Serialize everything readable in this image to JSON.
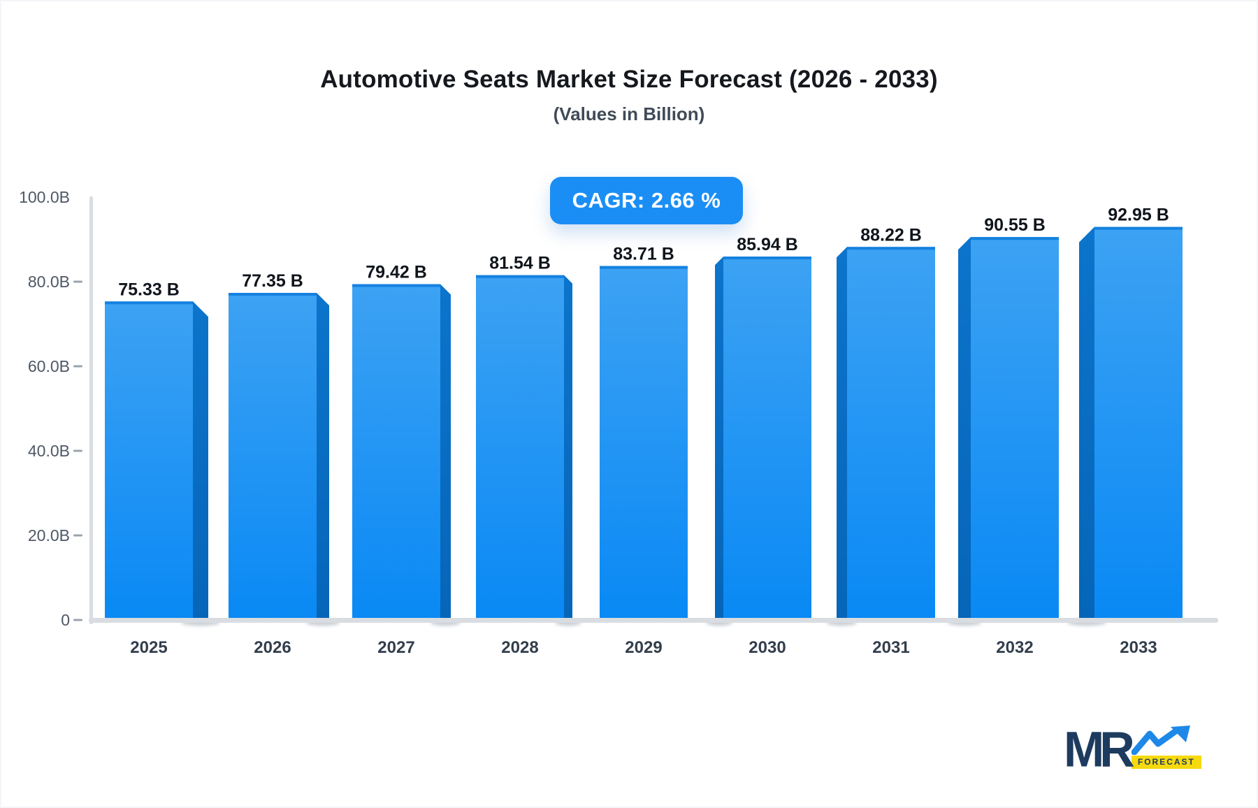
{
  "header": {
    "title": "Automotive Seats Market Size Forecast (2026 - 2033)",
    "subtitle": "(Values in Billion)"
  },
  "cagr_badge": {
    "label": "CAGR: 2.66 %"
  },
  "chart_data": {
    "type": "bar",
    "title": "Automotive Seats Market Size Forecast (2026 - 2033)",
    "subtitle": "(Values in Billion)",
    "annotation": "CAGR: 2.66 %",
    "categories": [
      "2025",
      "2026",
      "2027",
      "2028",
      "2029",
      "2030",
      "2031",
      "2032",
      "2033"
    ],
    "values": [
      75.33,
      77.35,
      79.42,
      81.54,
      83.71,
      85.94,
      88.22,
      90.55,
      92.95
    ],
    "value_labels": [
      "75.33 B",
      "77.35 B",
      "79.42 B",
      "81.54 B",
      "83.71 B",
      "85.94 B",
      "88.22 B",
      "90.55 B",
      "92.95 B"
    ],
    "xlabel": "",
    "ylabel": "",
    "ylim": [
      0,
      100
    ],
    "y_ticks": [
      {
        "label": "100.0B",
        "value": 100,
        "dash": false
      },
      {
        "label": "80.0B",
        "value": 80,
        "dash": true
      },
      {
        "label": "60.0B",
        "value": 60,
        "dash": true
      },
      {
        "label": "40.0B",
        "value": 40,
        "dash": true
      },
      {
        "label": "20.0B",
        "value": 20,
        "dash": true
      },
      {
        "label": "0",
        "value": 0,
        "dash": true
      }
    ],
    "grid": false,
    "legend": false,
    "colors": {
      "bar_face_top": "#3da2f3",
      "bar_face_bottom": "#0989f4",
      "bar_side_top": "#0c74cc",
      "bar_side_bottom": "#0665b8",
      "bar_top_edge": "#1581e0",
      "axis_line": "#d9dce1",
      "tick_dash": "#9ba3ad",
      "y_label": "#4e5865",
      "x_label": "#333e4c",
      "value_label": "#10151c",
      "badge_bg": "#1b8ef5"
    }
  },
  "logo": {
    "mr": "MR",
    "tag": "FORECAST",
    "navy": "#1d3b5f",
    "blue": "#1e88e8",
    "yellow": "#f6d90f"
  }
}
